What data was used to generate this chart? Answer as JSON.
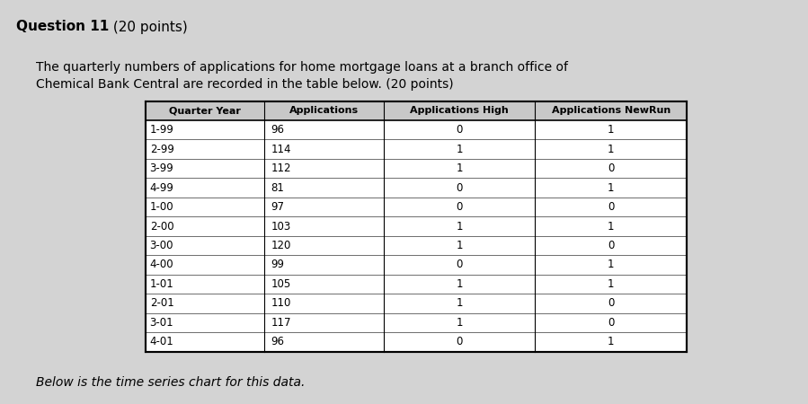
{
  "title_bold": "Question 11",
  "title_suffix": " (20 points)",
  "subtitle": "The quarterly numbers of applications for home mortgage loans at a branch office of\nChemical Bank Central are recorded in the table below. (20 points)",
  "footer": "Below is the time series chart for this data.",
  "col_headers": [
    "Quarter Year",
    "Applications",
    "Applications High",
    "Applications NewRun"
  ],
  "rows": [
    [
      "1-99",
      "96",
      "0",
      "1"
    ],
    [
      "2-99",
      "114",
      "1",
      "1"
    ],
    [
      "3-99",
      "112",
      "1",
      "0"
    ],
    [
      "4-99",
      "81",
      "0",
      "1"
    ],
    [
      "1-00",
      "97",
      "0",
      "0"
    ],
    [
      "2-00",
      "103",
      "1",
      "1"
    ],
    [
      "3-00",
      "120",
      "1",
      "0"
    ],
    [
      "4-00",
      "99",
      "0",
      "1"
    ],
    [
      "1-01",
      "105",
      "1",
      "1"
    ],
    [
      "2-01",
      "110",
      "1",
      "0"
    ],
    [
      "3-01",
      "117",
      "1",
      "0"
    ],
    [
      "4-01",
      "96",
      "0",
      "1"
    ]
  ],
  "bg_color": "#d3d3d3",
  "text_color": "#000000",
  "font_size_title": 11,
  "font_size_text": 10,
  "font_size_table": 8.5
}
